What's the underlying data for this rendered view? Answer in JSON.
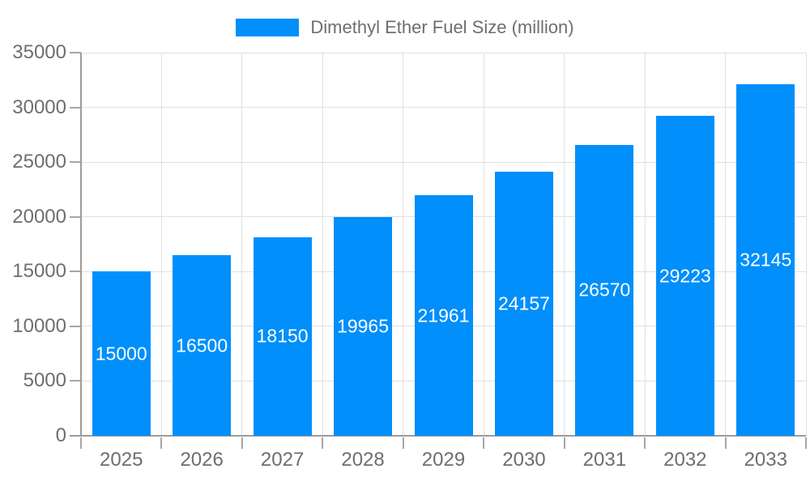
{
  "chart_data": {
    "type": "bar",
    "title": "Dimethyl Ether Fuel Size (million)",
    "categories": [
      "2025",
      "2026",
      "2027",
      "2028",
      "2029",
      "2030",
      "2031",
      "2032",
      "2033"
    ],
    "series": [
      {
        "name": "Dimethyl Ether Fuel Size (million)",
        "values": [
          15000,
          16500,
          18150,
          19965,
          21961,
          24157,
          26570,
          29223,
          32145
        ]
      }
    ],
    "xlabel": "",
    "ylabel": "",
    "ylim": [
      0,
      35000
    ],
    "yticks": [
      0,
      5000,
      10000,
      15000,
      20000,
      25000,
      30000,
      35000
    ],
    "grid": "horizontal and vertical, behind bars",
    "legend_position": "top-center",
    "data_labels": "white, centered inside bars"
  },
  "colors": {
    "bar": "#008FFB",
    "grid": "#e0e0e0",
    "axis_line": "#9c9c9c",
    "tick": "#a6a6a6",
    "axis_text": "#6e6e6e",
    "legend_text": "#6e6e6e",
    "bar_label_text": "#ffffff",
    "background": "#ffffff"
  }
}
